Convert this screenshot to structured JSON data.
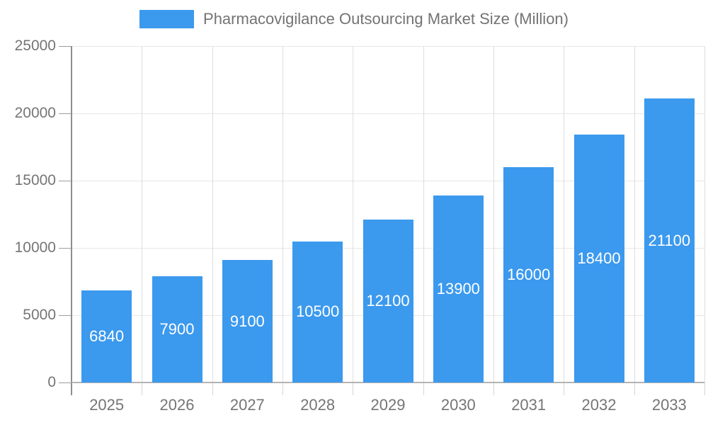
{
  "legend": {
    "label": "Pharmacovigilance Outsourcing Market Size (Million)",
    "swatch_color": "#3B99EE"
  },
  "chart_data": {
    "type": "bar",
    "title": "Pharmacovigilance Outsourcing Market Size (Million)",
    "categories": [
      "2025",
      "2026",
      "2027",
      "2028",
      "2029",
      "2030",
      "2031",
      "2032",
      "2033"
    ],
    "values": [
      6840,
      7900,
      9100,
      10500,
      12100,
      13900,
      16000,
      18400,
      21100
    ],
    "value_labels": [
      "6840",
      "7900",
      "9100",
      "10500",
      "12100",
      "13900",
      "16000",
      "18400",
      "21100"
    ],
    "xlabel": "",
    "ylabel": "",
    "ylim": [
      0,
      25000
    ],
    "yticks": [
      0,
      5000,
      10000,
      15000,
      20000,
      25000
    ],
    "ytick_labels": [
      "0",
      "5000",
      "10000",
      "15000",
      "20000",
      "25000"
    ],
    "grid": true,
    "legend_position": "top",
    "colors": {
      "bar": "#3B99EE",
      "value_label": "#ffffff",
      "axis_label": "#757575",
      "gridline_h": "#e7e7e7",
      "gridline_v": "#dedede",
      "y_axis_line": "#8e8e8e",
      "x_axis_line": "#b3b3b3"
    }
  }
}
